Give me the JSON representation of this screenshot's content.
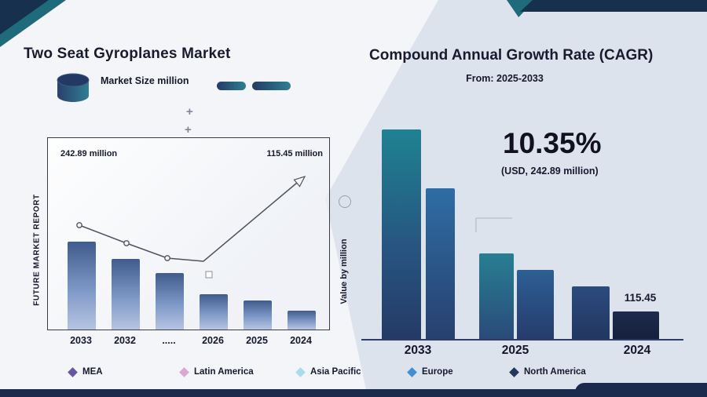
{
  "palette": {
    "navy": "#1b2b4e",
    "teal": "#1f6b7c",
    "bar_blue_top": "#3f5c8c",
    "bar_blue_bottom": "#b6c4e2",
    "diagonal_bg": "#dce3ed"
  },
  "decor": {
    "plus_marks": [
      "+",
      "+"
    ]
  },
  "legend": {
    "items": [
      {
        "label": "MEA",
        "color": "#6655a8"
      },
      {
        "label": "Latin America",
        "color": "#d9a9d4"
      },
      {
        "label": "Asia Pacific",
        "color": "#aadcec"
      },
      {
        "label": "Europe",
        "color": "#3f8fd4"
      },
      {
        "label": "North America",
        "color": "#253660"
      }
    ]
  },
  "chart_data": [
    {
      "id": "market-size-by-year",
      "type": "bar",
      "title": "Two Seat Gyroplanes Market",
      "legend": "Market Size million",
      "ylabel": "FUTURE MARKET REPORT",
      "categories": [
        "2033",
        "2032",
        ".....",
        "2026",
        "2025",
        "2024"
      ],
      "values_million": [
        242.89,
        215,
        186,
        148,
        131,
        115.45
      ],
      "values_note": "Only endpoints are labeled on the graphic: 2033 = 242.89 million, 2024 = 115.45 million; intermediate values estimated from relative bar heights",
      "bar_rel_heights": [
        100,
        80,
        64,
        40,
        33,
        21
      ],
      "annotations": [
        {
          "text": "242.89 million",
          "position": "top-left"
        },
        {
          "text": "115.45 million",
          "position": "top-right"
        }
      ],
      "overlay": "trend line with open markers declining left-to-right, then rising arrow toward the 115.45 million label",
      "grid": false,
      "legend_position": "top-left"
    },
    {
      "id": "cagr-by-year",
      "type": "bar",
      "title": "Compound Annual Growth Rate (CAGR)",
      "subtitle": "From: 2025-2033",
      "cagr_value": "10.35%",
      "cagr_note": "(USD, 242.89 million)",
      "ylabel": "Value by million",
      "categories": [
        "2033",
        "2025",
        "2024"
      ],
      "series": [
        {
          "name": "bar-1",
          "rel_heights": [
            100,
            41,
            25
          ]
        },
        {
          "name": "bar-2",
          "rel_heights": [
            72,
            33,
            13
          ]
        }
      ],
      "series_note": "Grouped decorative bars; only the 2024 group carries the printed value 115.45",
      "data_labels": [
        {
          "category": "2024",
          "text": "115.45"
        }
      ],
      "grid": false
    }
  ]
}
